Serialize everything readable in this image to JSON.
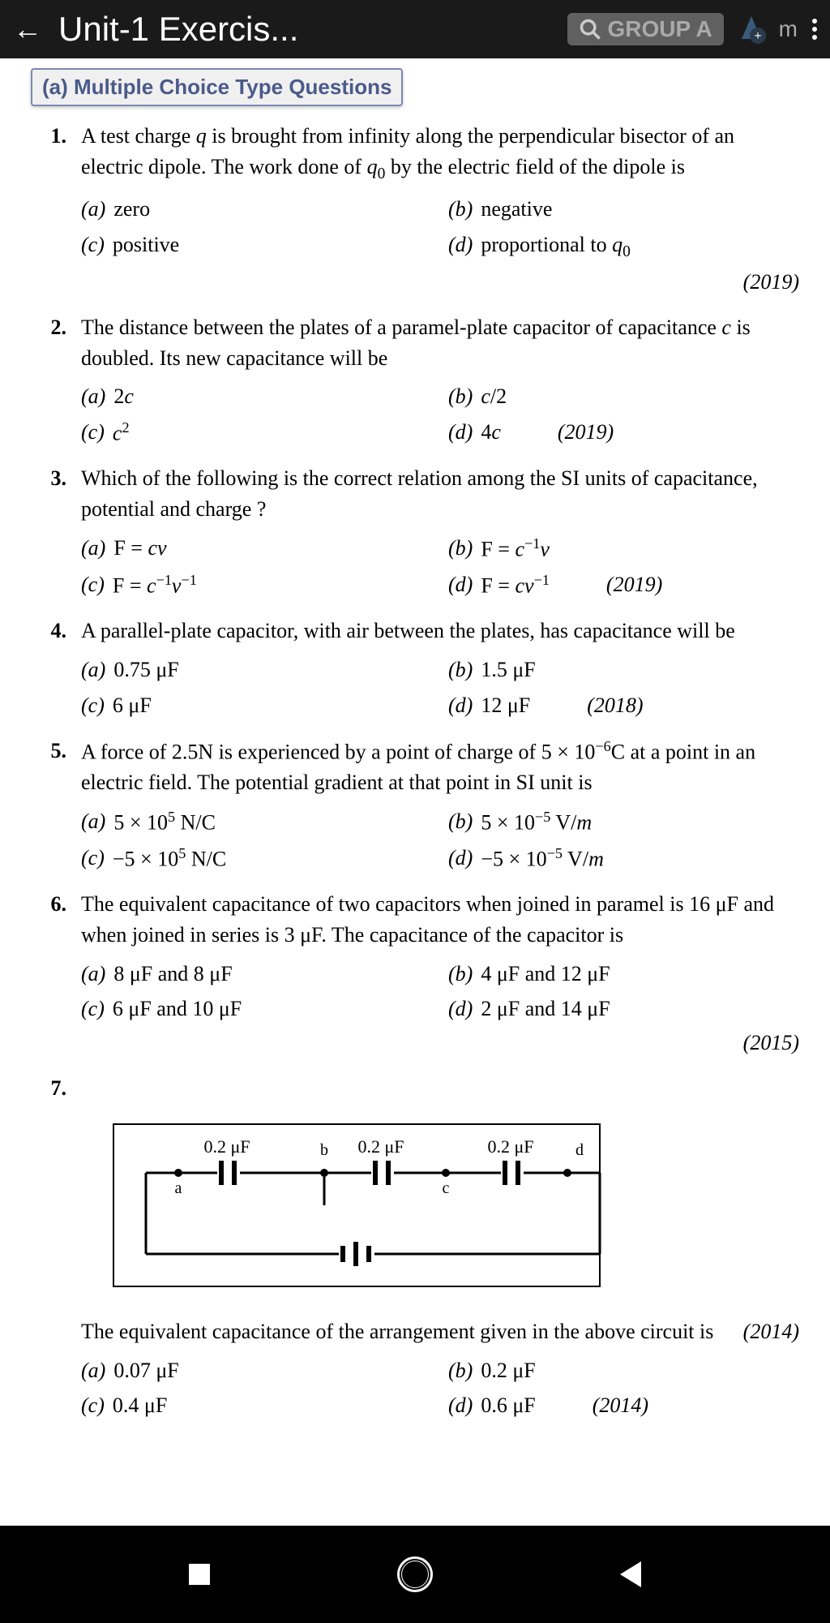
{
  "topbar": {
    "title": "Unit-1 Exercis...",
    "search_label": "GROUP A",
    "m_label": "m"
  },
  "section_header": "(a) Multiple Choice Type Questions",
  "questions": [
    {
      "num": "1.",
      "text": "A test charge <i>q</i> is brought from infinity along the perpendicular bisector of an electric dipole. The work done of <i>q</i><sub>0</sub> by the electric field of the dipole is",
      "opts": [
        {
          "l": "(<i>a</i>)",
          "t": "zero"
        },
        {
          "l": "(<i>b</i>)",
          "t": "negative"
        },
        {
          "l": "(<i>c</i>)",
          "t": "positive"
        },
        {
          "l": "(<i>d</i>)",
          "t": "proportional to <i>q</i><sub>0</sub>"
        }
      ],
      "year": "(2019)"
    },
    {
      "num": "2.",
      "text": "The distance between the plates of a paramel-plate capacitor of capacitance <i>c</i> is doubled. Its new capacitance will be",
      "opts": [
        {
          "l": "(<i>a</i>)",
          "t": "2<i>c</i>"
        },
        {
          "l": "(<i>b</i>)",
          "t": "<i>c</i>/2"
        },
        {
          "l": "(<i>c</i>)",
          "t": "<i>c</i><sup>2</sup>"
        },
        {
          "l": "(<i>d</i>)",
          "t": "4<i>c</i>"
        }
      ],
      "year_inline": "(2019)"
    },
    {
      "num": "3.",
      "text": "Which of the following is the correct relation among the SI units of capacitance, potential and charge ?",
      "opts": [
        {
          "l": "(<i>a</i>)",
          "t": "F = <i>cv</i>"
        },
        {
          "l": "(<i>b</i>)",
          "t": "F = <i>c</i><sup>&minus;1</sup><i>v</i>"
        },
        {
          "l": "(<i>c</i>)",
          "t": "F = <i>c</i><sup>&minus;1</sup><i>v</i><sup>&minus;1</sup>"
        },
        {
          "l": "(<i>d</i>)",
          "t": "F = <i>cv</i><sup>&minus;1</sup>"
        }
      ],
      "year_inline": "(2019)"
    },
    {
      "num": "4.",
      "text": "A parallel-plate capacitor, with air between the plates, has capacitance will be",
      "opts": [
        {
          "l": "(<i>a</i>)",
          "t": "0.75 &mu;F"
        },
        {
          "l": "(<i>b</i>)",
          "t": "1.5 &mu;F"
        },
        {
          "l": "(<i>c</i>)",
          "t": "6 &mu;F"
        },
        {
          "l": "(<i>d</i>)",
          "t": "12 &mu;F"
        }
      ],
      "year_inline": "(2018)"
    },
    {
      "num": "5.",
      "text": "A force of 2.5N is experienced by a point of charge of 5 &times; 10<sup>&minus;6</sup>C at a point in an electric field. The potential gradient at that point in SI unit is",
      "opts": [
        {
          "l": "(<i>a</i>)",
          "t": "5 &times; 10<sup>5</sup> N/C"
        },
        {
          "l": "(<i>b</i>)",
          "t": "5 &times; 10<sup>&minus;5</sup> V/<i>m</i>"
        },
        {
          "l": "(<i>c</i>)",
          "t": "&minus;5 &times; 10<sup>5</sup> N/C"
        },
        {
          "l": "(<i>d</i>)",
          "t": "&minus;5 &times; 10<sup>&minus;5</sup> V/<i>m</i>"
        }
      ]
    },
    {
      "num": "6.",
      "text": "The equivalent capacitance of two capacitors when joined in paramel is 16 &mu;F and when joined in series is 3 &mu;F. The capacitance of the capacitor is",
      "opts": [
        {
          "l": "(<i>a</i>)",
          "t": "8 &mu;F and 8 &mu;F"
        },
        {
          "l": "(<i>b</i>)",
          "t": "4 &mu;F and 12 &mu;F"
        },
        {
          "l": "(<i>c</i>)",
          "t": "6 &mu;F and 10 &mu;F"
        },
        {
          "l": "(<i>d</i>)",
          "t": "2 &mu;F and 14 &mu;F"
        }
      ],
      "year": "(2015)"
    },
    {
      "num": "7.",
      "text": "",
      "circuit": {
        "caps": [
          {
            "label": "0.2 &mu;F",
            "letter": "a"
          },
          {
            "label": "0.2 &mu;F",
            "letter": "b"
          },
          {
            "label": "0.2 &mu;F",
            "letter": "c"
          },
          {
            "label": "",
            "letter": "d"
          }
        ]
      },
      "post_text": "The equivalent capacitance of the arrangement given in the above circuit is",
      "post_year": "(2014)",
      "opts": [
        {
          "l": "(<i>a</i>)",
          "t": "0.07 &mu;F"
        },
        {
          "l": "(<i>b</i>)",
          "t": "0.2 &mu;F"
        },
        {
          "l": "(<i>c</i>)",
          "t": "0.4 &mu;F"
        },
        {
          "l": "(<i>d</i>)",
          "t": "0.6 &mu;F"
        }
      ],
      "year_inline": "(2014)"
    }
  ],
  "colors": {
    "topbar_bg": "#1a1a1a",
    "section_header_color": "#4a5a8a",
    "text": "#000000"
  }
}
